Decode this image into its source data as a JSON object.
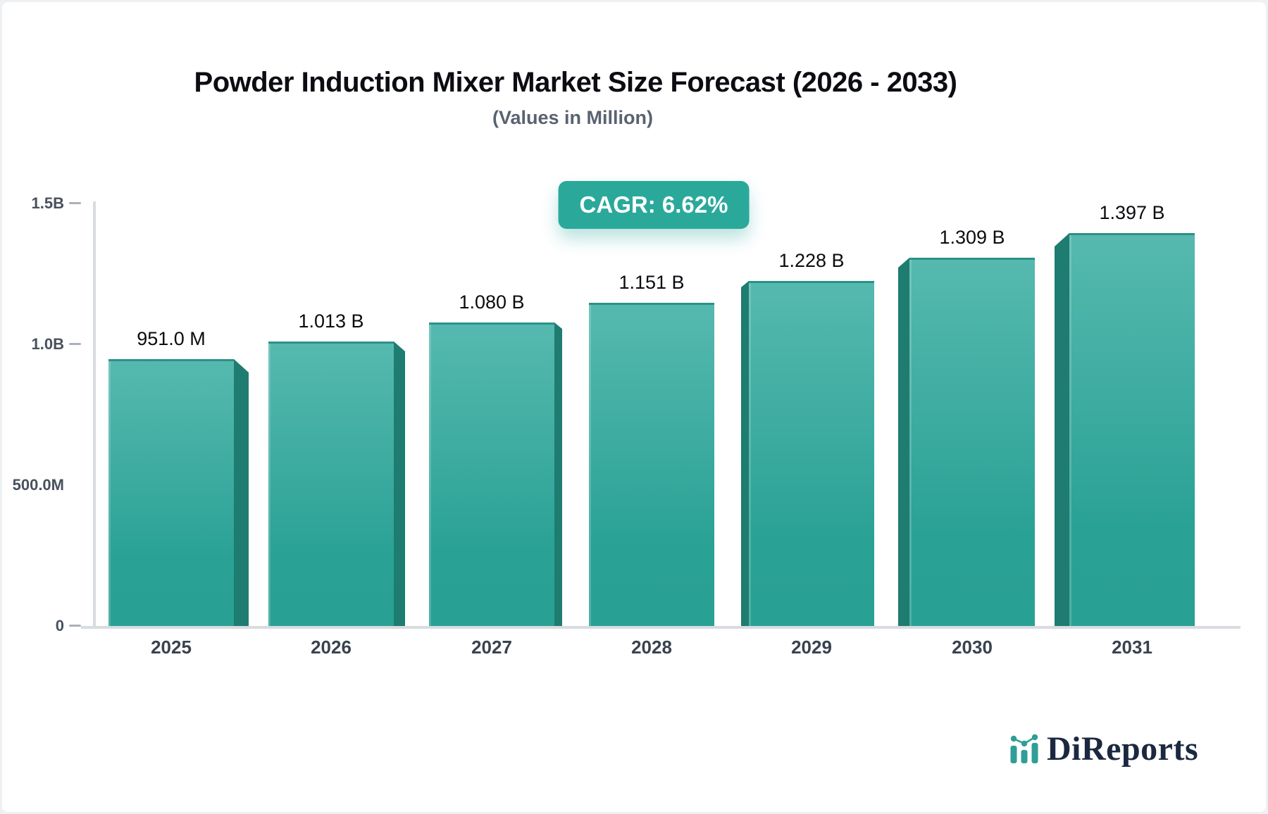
{
  "window": {
    "page_background": "#eef1f4",
    "card_background": "#ffffff"
  },
  "header": {
    "title": "Powder Induction Mixer Market Size Forecast (2026 - 2033)",
    "subtitle": "(Values in Million)"
  },
  "badge": {
    "label": "CAGR: 6.62%",
    "background": "#2aa99b",
    "text_color": "#ffffff"
  },
  "chart_data": {
    "type": "bar",
    "title": "Powder Induction Mixer Market Size Forecast (2026 - 2033)",
    "subtitle": "(Values in Million)",
    "cagr_percent": 6.62,
    "categories": [
      "2025",
      "2026",
      "2027",
      "2028",
      "2029",
      "2030",
      "2031"
    ],
    "values_millions": [
      951.0,
      1013,
      1080,
      1151,
      1228,
      1309,
      1397
    ],
    "value_labels": [
      "951.0 M",
      "1.013 B",
      "1.080 B",
      "1.151 B",
      "1.228 B",
      "1.309 B",
      "1.397 B"
    ],
    "ylim_millions": [
      0,
      1500
    ],
    "yticks": [
      {
        "label": "1.5B",
        "value_millions": 1500,
        "dash": true
      },
      {
        "label": "1.0B",
        "value_millions": 1000,
        "dash": true
      },
      {
        "label": "500.0M",
        "value_millions": 500,
        "dash": false
      },
      {
        "label": "0",
        "value_millions": 0,
        "dash": true
      }
    ],
    "grid": false,
    "legend": false,
    "style_3d": true,
    "colors": {
      "bar_face_top": "#56b9af",
      "bar_face_bottom": "#2aa195",
      "bar_side_face": "#1e7c70",
      "bar_top_edge": "#2c9187",
      "axis_line": "#d8dce1",
      "tick_text": "#48515e",
      "value_label_text": "#0b0b10"
    }
  },
  "logo": {
    "icon": "bar-chart-logo-icon",
    "text": "DiReports",
    "text_color": "#1b2840",
    "icon_color": "#2f9e96"
  }
}
